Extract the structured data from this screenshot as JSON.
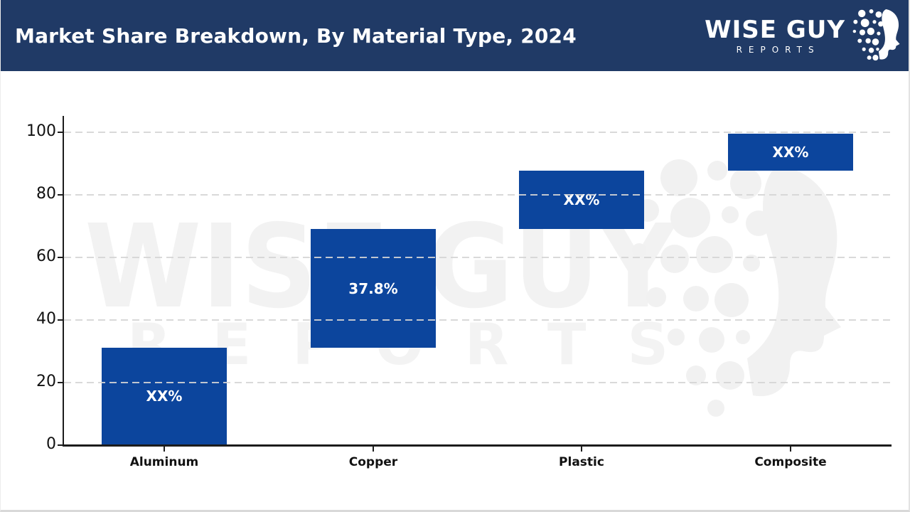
{
  "header": {
    "title": "Market Share Breakdown, By Material Type, 2024",
    "logo": {
      "line1": "WISE GUY",
      "line2": "REPORTS"
    }
  },
  "watermark": {
    "line1": "WISE GUY",
    "line2": "REPORTS"
  },
  "icons": {
    "logo_face": "dotted-head-profile",
    "watermark_face": "dotted-head-profile"
  },
  "colors": {
    "header_bg": "#203a66",
    "bar": "#0c459d",
    "grid": "#d5d5d5",
    "axis": "#1c1c1c",
    "watermark": "#f2f2f2"
  },
  "chart_data": {
    "type": "bar",
    "subtype": "waterfall-floating-bars",
    "title": "Market Share Breakdown, By Material Type, 2024",
    "categories": [
      "Aluminum",
      "Copper",
      "Plastic",
      "Composite"
    ],
    "bars": [
      {
        "category": "Aluminum",
        "start": 0,
        "end": 31.2,
        "label": "XX%"
      },
      {
        "category": "Copper",
        "start": 31.2,
        "end": 69.0,
        "label": "37.8%"
      },
      {
        "category": "Plastic",
        "start": 69.0,
        "end": 87.7,
        "label": "XX%"
      },
      {
        "category": "Composite",
        "start": 87.7,
        "end": 99.5,
        "label": "XX%"
      }
    ],
    "xlabel": "",
    "ylabel": "",
    "yticks": [
      0,
      20,
      40,
      60,
      80,
      100
    ],
    "ylim": [
      0,
      100
    ],
    "grid": "dashed-horizontal-on-top",
    "legend": "none"
  }
}
